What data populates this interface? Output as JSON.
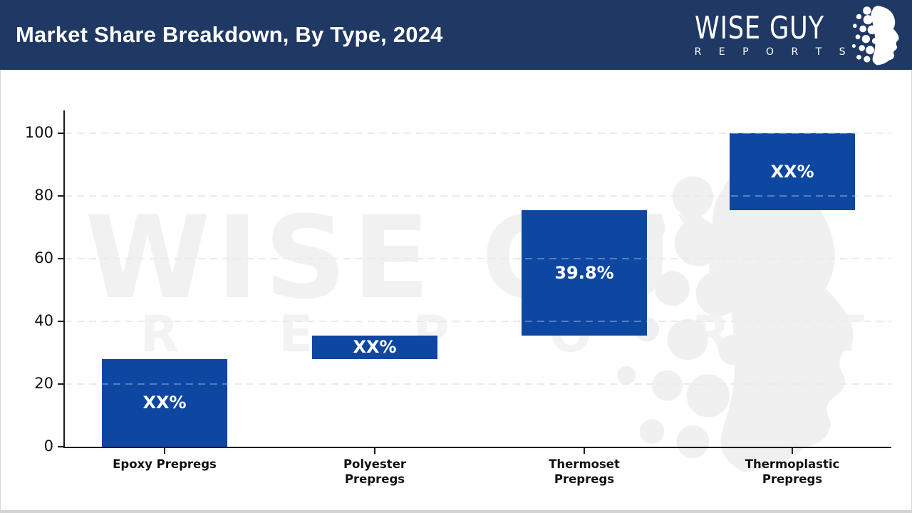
{
  "header": {
    "title": "Market Share Breakdown, By Type, 2024",
    "logo": {
      "line1": "WISE GUY",
      "line2": "R E P O R T S"
    }
  },
  "watermark": {
    "line1": "WISE GUY",
    "line2": "R E P O R T S"
  },
  "colors": {
    "header_bg": "#1f3864",
    "bar": "#0d47a1",
    "bar_label": "#ffffff",
    "grid": "#e2e2e2",
    "axis": "#1a1a1a",
    "watermark": "#f1f1f1",
    "bottom_strip": "#d2d2d2"
  },
  "chart_data": {
    "type": "bar",
    "variant": "floating-breakdown-bars",
    "title": "Market Share Breakdown, By Type, 2024",
    "categories": [
      "Epoxy Prepregs",
      "Polyester Prepregs",
      "Thermoset Prepregs",
      "Thermoplastic Prepregs"
    ],
    "segments": [
      {
        "category": "Epoxy Prepregs",
        "start": 0,
        "end": 28,
        "value_label": "XX%"
      },
      {
        "category": "Polyester Prepregs",
        "start": 28,
        "end": 35.5,
        "value_label": "XX%"
      },
      {
        "category": "Thermoset Prepregs",
        "start": 35.5,
        "end": 75.3,
        "value_label": "39.8%"
      },
      {
        "category": "Thermoplastic Prepregs",
        "start": 75.3,
        "end": 100,
        "value_label": "XX%"
      }
    ],
    "yticks": [
      0,
      20,
      40,
      60,
      80,
      100
    ],
    "ylim": [
      0,
      106
    ],
    "xlabel": "",
    "ylabel": "",
    "grid": "horizontal dashed",
    "legend": "none"
  }
}
